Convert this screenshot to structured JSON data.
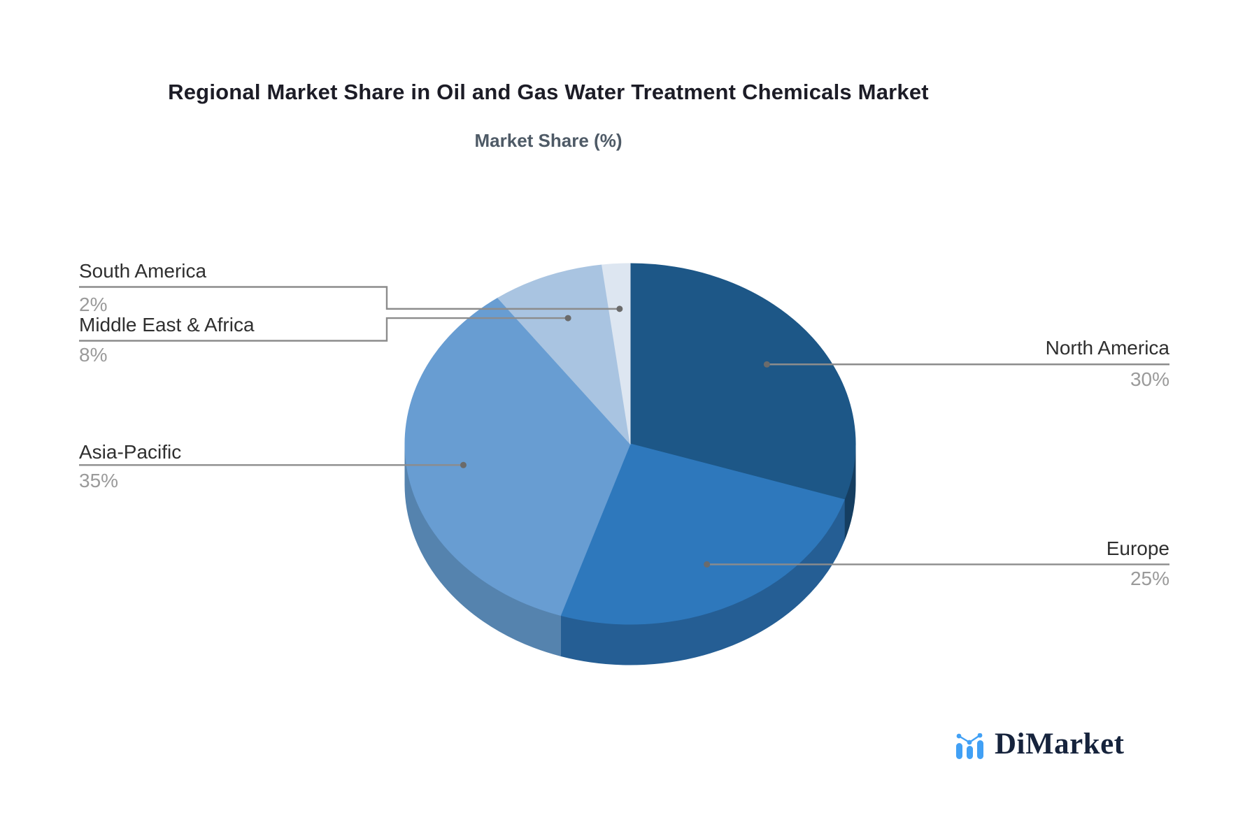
{
  "header": {
    "title": "Regional Market Share in Oil and Gas Water Treatment Chemicals Market",
    "subtitle": "Market Share (%)"
  },
  "chart_data": {
    "type": "pie",
    "style": "3d-pie",
    "title": "Regional Market Share in Oil and Gas Water Treatment Chemicals Market",
    "subtitle": "Market Share (%)",
    "labels": [
      "North America",
      "Europe",
      "Asia-Pacific",
      "Middle East & Africa",
      "South America"
    ],
    "values": [
      30,
      25,
      35,
      8,
      2
    ],
    "pct_labels": [
      "30%",
      "25%",
      "35%",
      "8%",
      "2%"
    ],
    "colors": [
      "#1d5787",
      "#2e78bc",
      "#689dd2",
      "#a9c4e1",
      "#dde6f1"
    ],
    "rim_colors": [
      "#153e61",
      "#255e94",
      "#5583ae",
      "#8fb0d4",
      "#c4d4e8"
    ],
    "start_angle_deg": 0,
    "direction": "clockwise",
    "legend_position": "callout-labels",
    "label_text_color": "#2f2f2f",
    "pct_text_color": "#9a9a9a",
    "leader_line_color": "#8c8c8c",
    "leader_dot_color": "#6b6b6b"
  },
  "logo": {
    "text": "DiMarket",
    "icon": "bar-chart-logo-icon",
    "icon_color": "#41a0f5",
    "text_color": "#16233c"
  }
}
